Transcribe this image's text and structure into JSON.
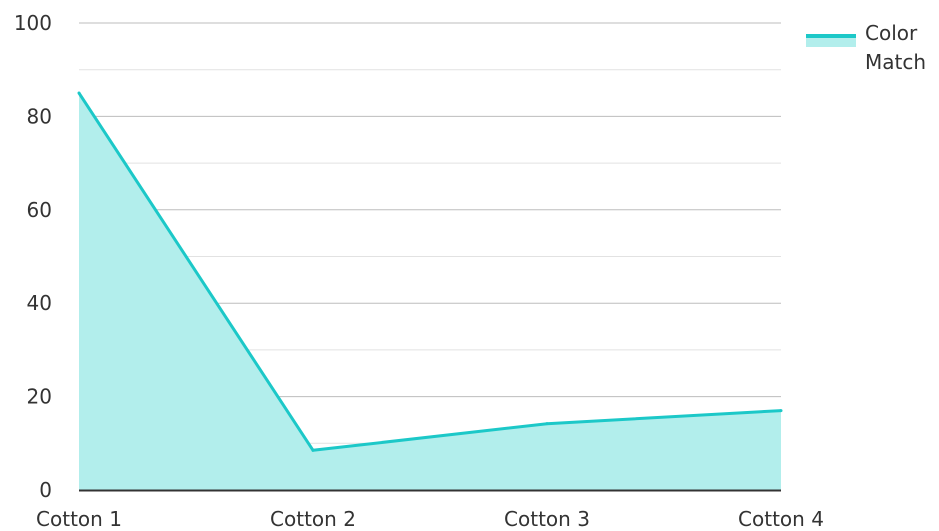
{
  "chart_data": {
    "type": "area",
    "categories": [
      "Cotton 1",
      "Cotton 2",
      "Cotton 3",
      "Cotton 4"
    ],
    "series": [
      {
        "name": "Color Match",
        "values": [
          85,
          8.5,
          14.2,
          17
        ]
      }
    ],
    "y_ticks": [
      "0",
      "20",
      "40",
      "60",
      "80",
      "100"
    ],
    "ylim": [
      0,
      100
    ],
    "grid": true,
    "legend": {
      "position": "top-right",
      "lines": [
        "Color",
        "Match"
      ]
    },
    "colors": {
      "line": "#1cc8c8",
      "fill": "#b2eeec",
      "grid_major": "#bdbdbd",
      "grid_minor": "#e2e2e2",
      "axis": "#333333"
    }
  }
}
